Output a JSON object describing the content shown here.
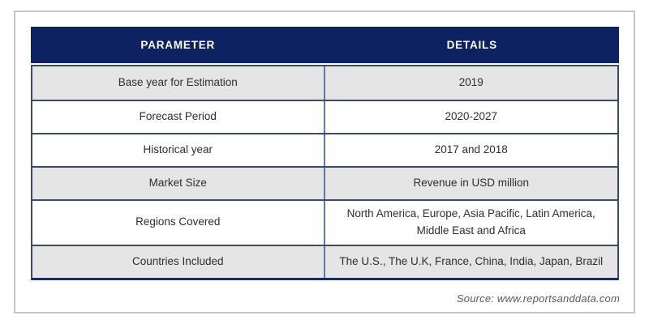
{
  "table": {
    "headers": [
      {
        "label": "PARAMETER"
      },
      {
        "label": "DETAILS"
      }
    ],
    "rows": [
      {
        "parameter": "Base year for Estimation",
        "details": "2019",
        "shaded": true
      },
      {
        "parameter": "Forecast Period",
        "details": "2020-2027",
        "shaded": false
      },
      {
        "parameter": "Historical year",
        "details": "2017 and 2018",
        "shaded": false
      },
      {
        "parameter": "Market Size",
        "details": "Revenue in USD million",
        "shaded": true
      },
      {
        "parameter": "Regions Covered",
        "details": "North America, Europe, Asia Pacific, Latin America, Middle East and Africa",
        "shaded": false
      },
      {
        "parameter": "Countries Included",
        "details": "The U.S., The  U.K, France, China, India, Japan, Brazil",
        "shaded": true
      }
    ]
  },
  "source": {
    "label": "Source: www.reportsanddata.com"
  },
  "colors": {
    "header_bg": "#0d2361",
    "row_shaded": "#e5e5e5",
    "border": "#3c4b63",
    "divider": "#5c7aa4",
    "table_bottom_border": "#16296b",
    "frame": "#c6c6c6",
    "source_text": "#5a5a5a"
  }
}
